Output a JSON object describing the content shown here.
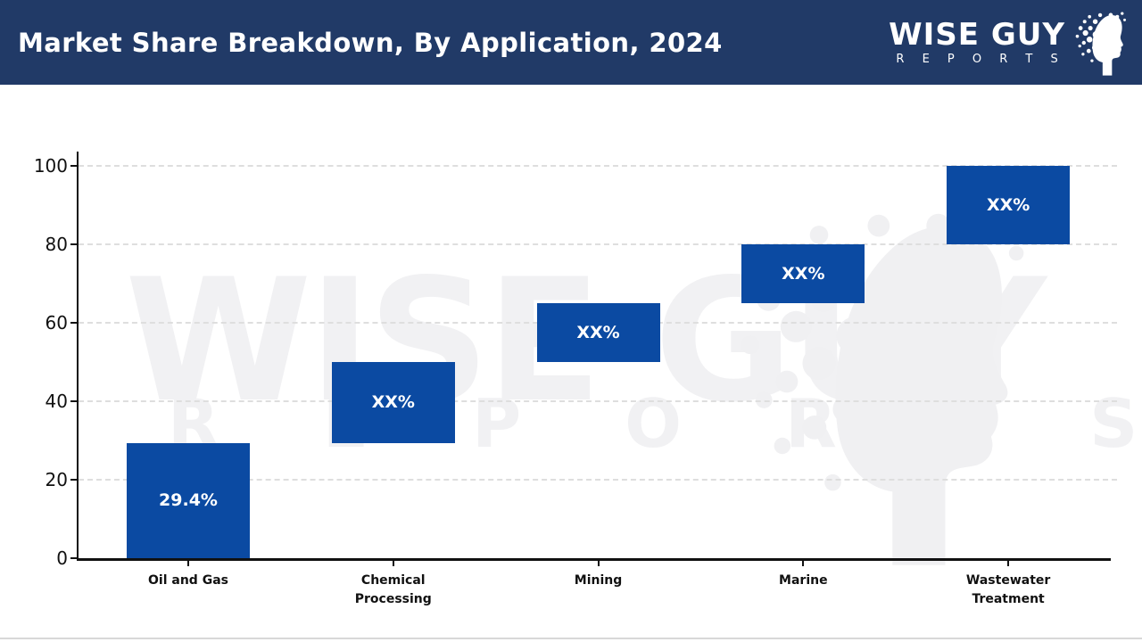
{
  "header": {
    "title": "Market Share Breakdown, By Application, 2024",
    "logo": {
      "line1": "WISE GUY",
      "line2": "REPORTS",
      "line2_display": "R E P O R T S"
    }
  },
  "watermark": {
    "line1": "WISE GUY",
    "line2": "R E P O R T S"
  },
  "chart_data": {
    "type": "bar",
    "subtype": "waterfall",
    "title": "Market Share Breakdown, By Application, 2024",
    "categories": [
      "Oil and Gas",
      "Chemical Processing",
      "Mining",
      "Marine",
      "Wastewater Treatment"
    ],
    "categories_display": [
      "Oil and Gas",
      "Chemical\nProcessing",
      "Mining",
      "Marine",
      "Wastewater\nTreatment"
    ],
    "segments": [
      {
        "category": "Oil and Gas",
        "start": 0,
        "end": 29.4,
        "label": "29.4%"
      },
      {
        "category": "Chemical Processing",
        "start": 29.4,
        "end": 50,
        "label": "XX%"
      },
      {
        "category": "Mining",
        "start": 50,
        "end": 65,
        "label": "XX%"
      },
      {
        "category": "Marine",
        "start": 65,
        "end": 80,
        "label": "XX%"
      },
      {
        "category": "Wastewater Treatment",
        "start": 80,
        "end": 100,
        "label": "XX%"
      }
    ],
    "xlabel": "",
    "ylabel": "",
    "ylim": [
      0,
      100
    ],
    "yticks": [
      0,
      20,
      40,
      60,
      80,
      100
    ],
    "grid": "horizontal-dashed",
    "legend": "none",
    "bar_color": "#0b4aa2",
    "value_label_color": "#ffffff"
  },
  "colors": {
    "header_bg": "#213a67",
    "bar": "#0b4aa2",
    "grid": "#dedede",
    "axis": "#111111",
    "watermark": "#f1f1f3",
    "footer_line": "#d8d8d8"
  }
}
